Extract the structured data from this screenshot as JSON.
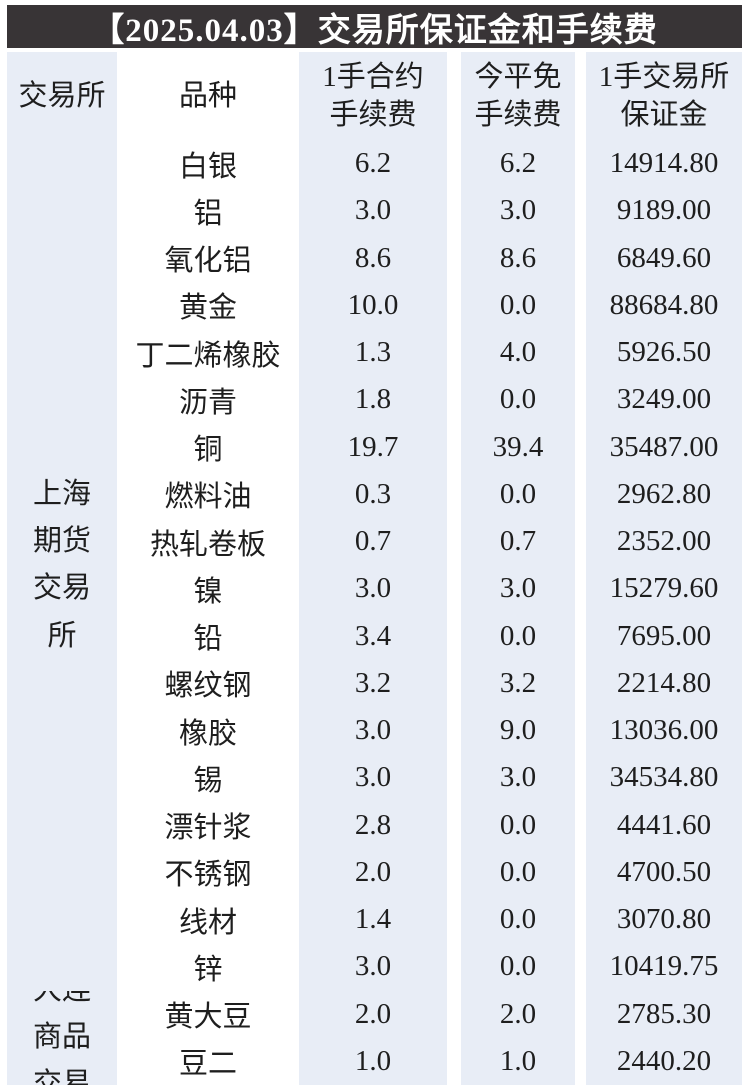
{
  "title": "【2025.04.03】交易所保证金和手续费",
  "colors": {
    "title_bar_bg": "#383436",
    "title_text": "#ffffff",
    "column_tint_bg": "#e8edf6",
    "body_text": "#1e1e1e"
  },
  "header_display": {
    "exchange": "交易所",
    "variety": "品种",
    "fee_l1": "1手合约",
    "fee_l2": "手续费",
    "close_l1": "今平免",
    "close_l2": "手续费",
    "margin_l1": "1手交易所",
    "margin_l2": "保证金"
  },
  "chart_data": {
    "type": "table",
    "title": "【2025.04.03】交易所保证金和手续费",
    "columns": [
      "交易所",
      "品种",
      "1手合约手续费",
      "今平免手续费",
      "1手交易所保证金"
    ],
    "exchange_groups": [
      {
        "name": "上海期货交易所",
        "row_span": 18
      },
      {
        "name": "大连商品交易",
        "row_span": 2
      }
    ],
    "rows": [
      {
        "variety": "白银",
        "contract_fee": "6.2",
        "close_today_fee": "6.2",
        "margin": "14914.80"
      },
      {
        "variety": "铝",
        "contract_fee": "3.0",
        "close_today_fee": "3.0",
        "margin": "9189.00"
      },
      {
        "variety": "氧化铝",
        "contract_fee": "8.6",
        "close_today_fee": "8.6",
        "margin": "6849.60"
      },
      {
        "variety": "黄金",
        "contract_fee": "10.0",
        "close_today_fee": "0.0",
        "margin": "88684.80"
      },
      {
        "variety": "丁二烯橡胶",
        "contract_fee": "1.3",
        "close_today_fee": "4.0",
        "margin": "5926.50"
      },
      {
        "variety": "沥青",
        "contract_fee": "1.8",
        "close_today_fee": "0.0",
        "margin": "3249.00"
      },
      {
        "variety": "铜",
        "contract_fee": "19.7",
        "close_today_fee": "39.4",
        "margin": "35487.00"
      },
      {
        "variety": "燃料油",
        "contract_fee": "0.3",
        "close_today_fee": "0.0",
        "margin": "2962.80"
      },
      {
        "variety": "热轧卷板",
        "contract_fee": "0.7",
        "close_today_fee": "0.7",
        "margin": "2352.00"
      },
      {
        "variety": "镍",
        "contract_fee": "3.0",
        "close_today_fee": "3.0",
        "margin": "15279.60"
      },
      {
        "variety": "铅",
        "contract_fee": "3.4",
        "close_today_fee": "0.0",
        "margin": "7695.00"
      },
      {
        "variety": "螺纹钢",
        "contract_fee": "3.2",
        "close_today_fee": "3.2",
        "margin": "2214.80"
      },
      {
        "variety": "橡胶",
        "contract_fee": "3.0",
        "close_today_fee": "9.0",
        "margin": "13036.00"
      },
      {
        "variety": "锡",
        "contract_fee": "3.0",
        "close_today_fee": "3.0",
        "margin": "34534.80"
      },
      {
        "variety": "漂针浆",
        "contract_fee": "2.8",
        "close_today_fee": "0.0",
        "margin": "4441.60"
      },
      {
        "variety": "不锈钢",
        "contract_fee": "2.0",
        "close_today_fee": "0.0",
        "margin": "4700.50"
      },
      {
        "variety": "线材",
        "contract_fee": "1.4",
        "close_today_fee": "0.0",
        "margin": "3070.80"
      },
      {
        "variety": "锌",
        "contract_fee": "3.0",
        "close_today_fee": "0.0",
        "margin": "10419.75"
      },
      {
        "variety": "黄大豆",
        "contract_fee": "2.0",
        "close_today_fee": "2.0",
        "margin": "2785.30"
      },
      {
        "variety": "豆二",
        "contract_fee": "1.0",
        "close_today_fee": "1.0",
        "margin": "2440.20"
      }
    ]
  }
}
